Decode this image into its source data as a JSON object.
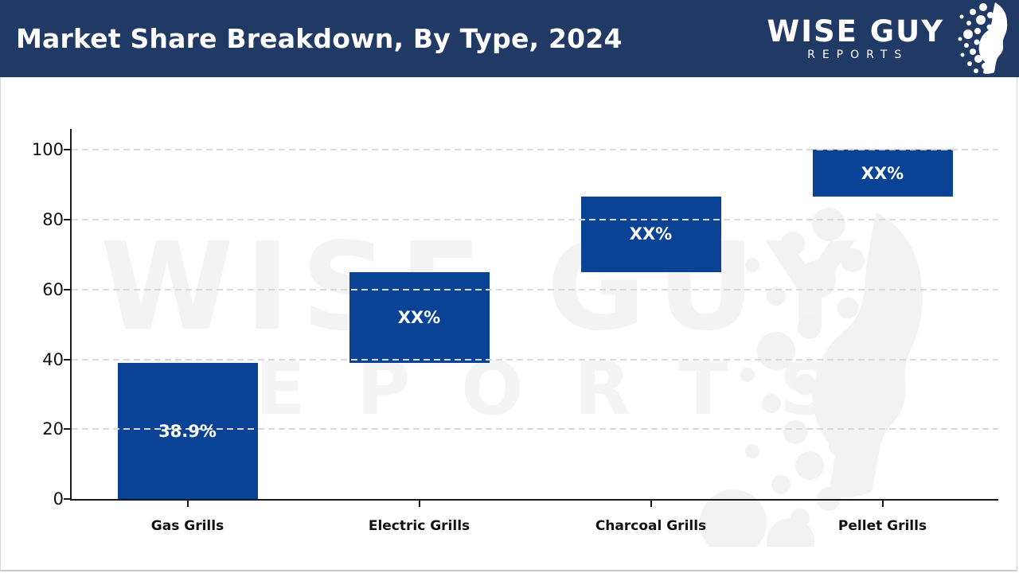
{
  "header": {
    "title": "Market Share Breakdown, By Type, 2024",
    "bg_color": "#203A65",
    "logo": {
      "line1": "WISE GUY",
      "line2": "REPORTS"
    }
  },
  "watermark": {
    "line1": "WISE GUY",
    "line2": "REPORTS"
  },
  "chart_data": {
    "type": "bar",
    "subtype": "waterfall",
    "title": "Market Share Breakdown, By Type, 2024",
    "categories": [
      "Gas Grills",
      "Electric Grills",
      "Charcoal Grills",
      "Pellet Grills"
    ],
    "segments": [
      [
        0,
        38.9
      ],
      [
        38.9,
        65.0
      ],
      [
        65.0,
        86.6
      ],
      [
        86.6,
        100.0
      ]
    ],
    "bar_labels": [
      "38.9%",
      "XX%",
      "XX%",
      "XX%"
    ],
    "y_ticks": [
      0,
      20,
      40,
      60,
      80,
      100
    ],
    "ylim": [
      0,
      106
    ],
    "xlabel": "",
    "ylabel": "",
    "grid": true,
    "grid_style": "dashed",
    "legend": "none",
    "bar_color": "#0A4396",
    "bar_label_color": "#ffffff",
    "axis_color": "#1a1a1a",
    "grid_color": "#d9d9d9"
  }
}
